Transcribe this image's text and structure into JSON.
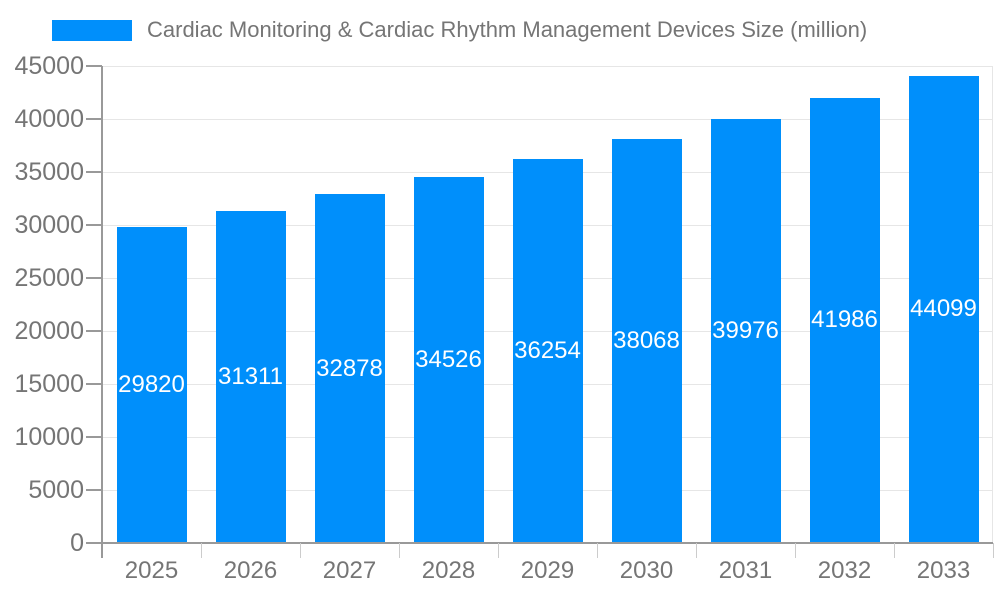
{
  "chart_data": {
    "type": "bar",
    "title": "Cardiac Monitoring & Cardiac Rhythm Management Devices Size (million)",
    "categories": [
      "2025",
      "2026",
      "2027",
      "2028",
      "2029",
      "2030",
      "2031",
      "2032",
      "2033"
    ],
    "values": [
      29820,
      31311,
      32878,
      34526,
      36254,
      38068,
      39976,
      41986,
      44099
    ],
    "xlabel": "",
    "ylabel": "",
    "ylim": [
      0,
      45000
    ],
    "ytick_step": 5000,
    "ytick_labels": [
      "0",
      "5000",
      "10000",
      "15000",
      "20000",
      "25000",
      "30000",
      "35000",
      "40000",
      "45000"
    ],
    "grid": true,
    "legend_position": "top-left",
    "value_labels": "inside-center"
  },
  "colors": {
    "bar": "#008FFB",
    "axis_line": "#999999",
    "gridline": "#e6e6e6",
    "tick": "#999999",
    "category_tick": "#cccccc",
    "text": "#757575",
    "value_label": "#ffffff",
    "background": "#ffffff"
  }
}
